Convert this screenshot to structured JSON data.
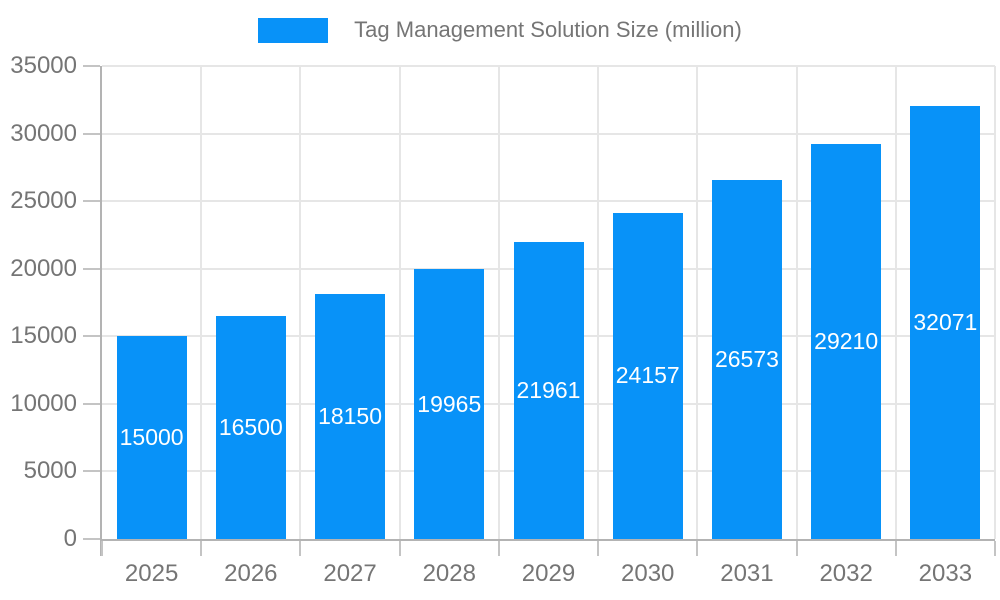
{
  "chart_data": {
    "type": "bar",
    "title": "",
    "legend_position": "top",
    "categories": [
      "2025",
      "2026",
      "2027",
      "2028",
      "2029",
      "2030",
      "2031",
      "2032",
      "2033"
    ],
    "series": [
      {
        "name": "Tag Management Solution Size (million)",
        "values": [
          15000,
          16500,
          18150,
          19965,
          21961,
          24157,
          26573,
          29210,
          32071
        ]
      }
    ],
    "xlabel": "",
    "ylabel": "",
    "ylim": [
      0,
      35000
    ],
    "yticks": [
      0,
      5000,
      10000,
      15000,
      20000,
      25000,
      30000,
      35000
    ],
    "grid": true,
    "colors": {
      "bar": "#0892f8",
      "value_label": "#ffffff",
      "axis_text": "#757575",
      "grid": "#e6e6e6",
      "axis_line": "#b3b3b3",
      "tick": "#c4c4c4"
    }
  }
}
